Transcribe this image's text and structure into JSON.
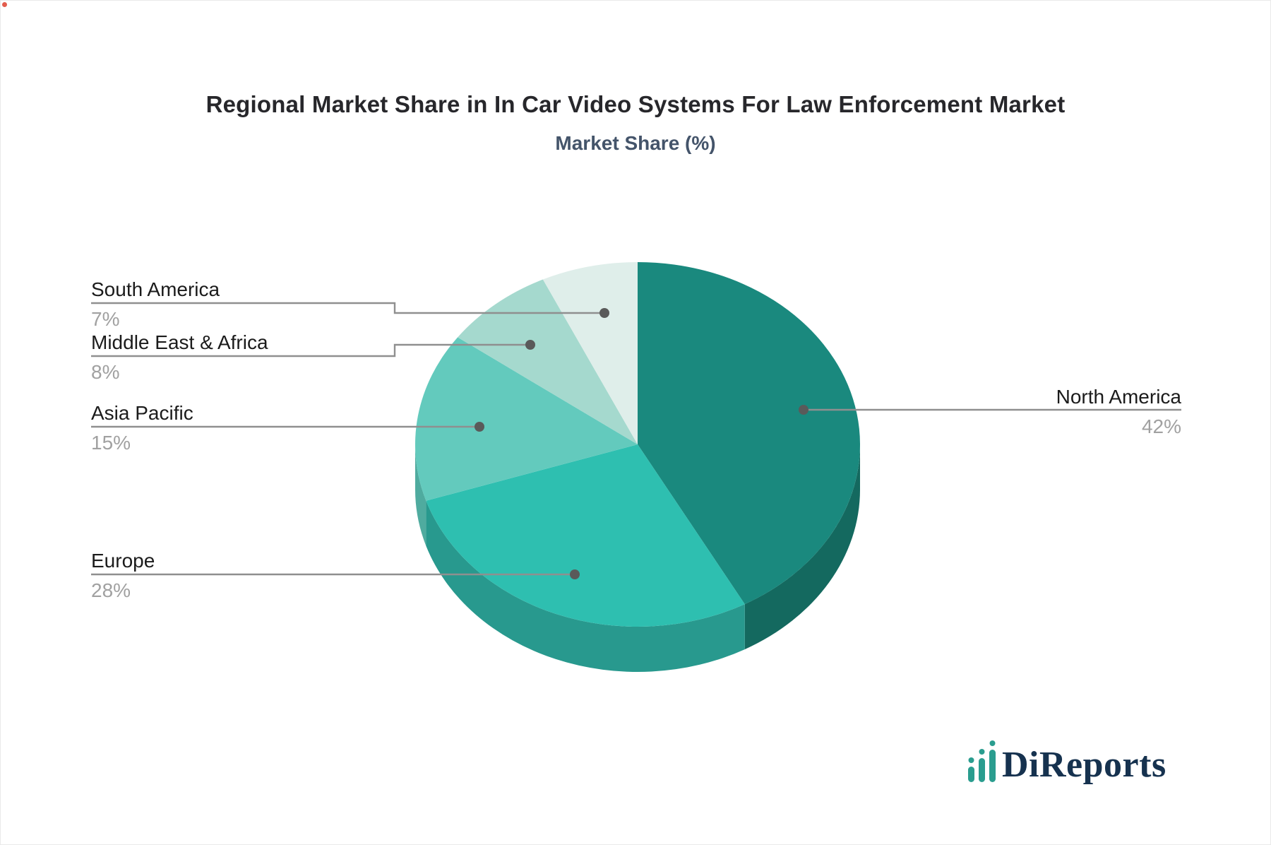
{
  "chart_data": {
    "type": "pie",
    "title": "Regional Market Share in In Car Video Systems For Law Enforcement Market",
    "subtitle": "Market Share (%)",
    "unit": "%",
    "labels": [
      "North America",
      "Europe",
      "Asia Pacific",
      "Middle East & Africa",
      "South America"
    ],
    "values": [
      42,
      28,
      15,
      8,
      7
    ],
    "value_labels": [
      "42%",
      "28%",
      "15%",
      "8%",
      "7%"
    ],
    "colors": [
      "#1a897e",
      "#2ebfb0",
      "#63cabd",
      "#a5d9ce",
      "#dfeeea"
    ],
    "side_colors": [
      "#14695f",
      "#28998e",
      "#4fab9f",
      "#8fc4ba",
      "#c5ded7"
    ],
    "start_angle_deg": 0,
    "clockwise": true,
    "effect_3d": true,
    "legend_position": "callout-labels",
    "background": "#ffffff"
  },
  "header": {
    "title": "Regional Market Share in In Car Video Systems For Law Enforcement Market",
    "subtitle": "Market Share (%)"
  },
  "styles": {
    "title_color": "#27272b",
    "subtitle_color": "#44546a",
    "label_color": "#1b1b1b",
    "value_color": "#a1a1a1",
    "leader_color": "#8f8f8f",
    "dot_color": "#5a5a5a",
    "logo_text_color": "#16324f",
    "logo_icon_color": "#2a9d8f"
  },
  "logo": {
    "text": "DiReports",
    "icon": "bar-chart-logo-icon"
  }
}
